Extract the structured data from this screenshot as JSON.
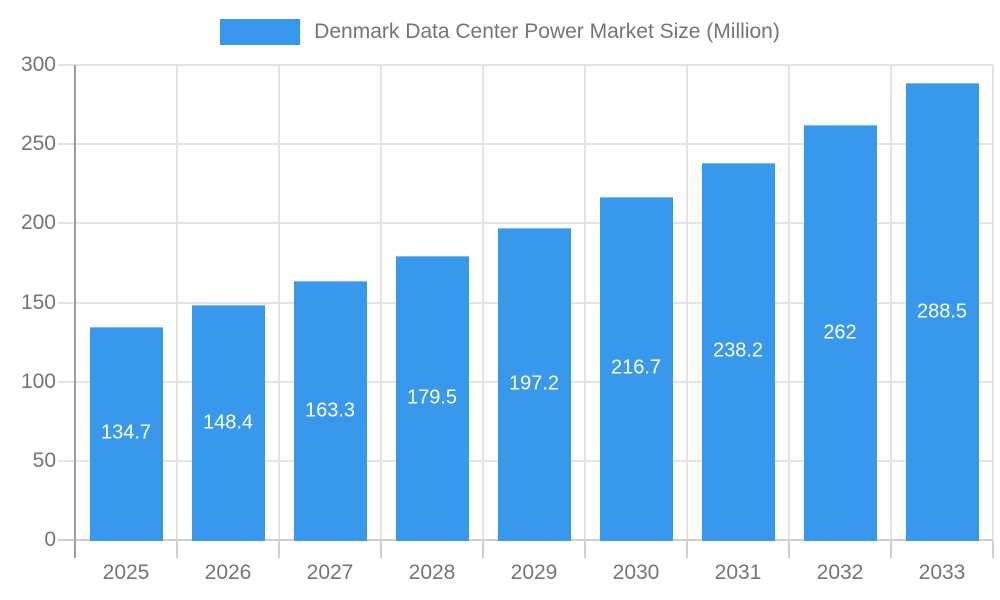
{
  "chart_data": {
    "type": "bar",
    "title": "Denmark Data Center Power Market Size (Million)",
    "categories": [
      "2025",
      "2026",
      "2027",
      "2028",
      "2029",
      "2030",
      "2031",
      "2032",
      "2033"
    ],
    "values": [
      134.7,
      148.4,
      163.3,
      179.5,
      197.2,
      216.7,
      238.2,
      262,
      288.5
    ],
    "series": [
      {
        "name": "Denmark Data Center Power Market Size (Million)",
        "values": [
          134.7,
          148.4,
          163.3,
          179.5,
          197.2,
          216.7,
          238.2,
          262,
          288.5
        ]
      }
    ],
    "xlabel": "",
    "ylabel": "",
    "ylim": [
      0,
      300
    ],
    "yticks": [
      0,
      50,
      100,
      150,
      200,
      250,
      300
    ],
    "grid": true,
    "legend_position": "top",
    "value_label_position": "inside-center",
    "colors": {
      "bar": "#3899EC",
      "value_label": "#FFFFFF",
      "axis_text": "#757575",
      "grid_line": "#E4E4E4",
      "y_axis_line": "#9E9E9E",
      "x_axis_line": "#CFCFCF",
      "background": "#FFFFFF"
    }
  }
}
